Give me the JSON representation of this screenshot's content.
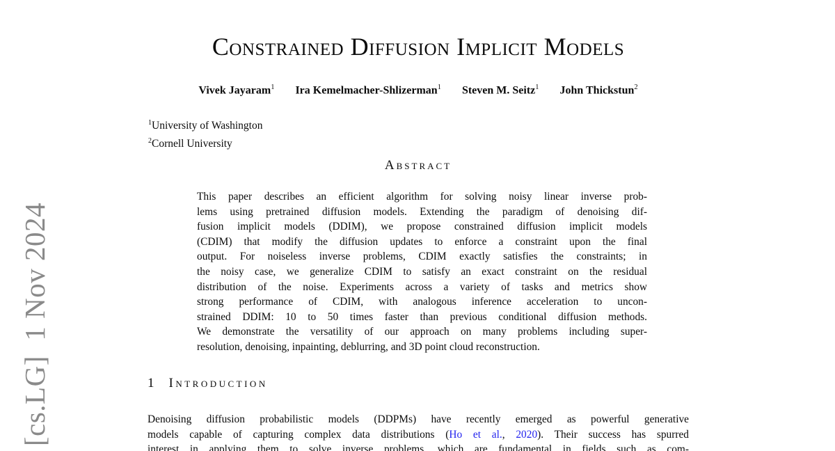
{
  "page": {
    "colors": {
      "background": "#ffffff",
      "text": "#0b0b0b",
      "link": "#2323ee",
      "watermark": "#8a8a8a"
    }
  },
  "watermark": {
    "text": "[cs.LG]  1 Nov 2024"
  },
  "title": "Constrained Diffusion Implicit Models",
  "authors": [
    {
      "name": "Vivek Jayaram",
      "sup": "1"
    },
    {
      "name": "Ira Kemelmacher-Shlizerman",
      "sup": "1"
    },
    {
      "name": "Steven M. Seitz",
      "sup": "1"
    },
    {
      "name": "John Thickstun",
      "sup": "2"
    }
  ],
  "affiliations": [
    {
      "sup": "1",
      "name": "University of Washington"
    },
    {
      "sup": "2",
      "name": "Cornell University"
    }
  ],
  "abstract": {
    "heading": "Abstract",
    "lines": [
      "This paper describes an efficient algorithm for solving noisy linear inverse prob-",
      "lems using pretrained diffusion models. Extending the paradigm of denoising dif-",
      "fusion implicit models (DDIM), we propose constrained diffusion implicit models",
      "(CDIM) that modify the diffusion updates to enforce a constraint upon the final",
      "output. For noiseless inverse problems, CDIM exactly satisfies the constraints; in",
      "the noisy case, we generalize CDIM to satisfy an exact constraint on the residual",
      "distribution of the noise. Experiments across a variety of tasks and metrics show",
      "strong performance of CDIM, with analogous inference acceleration to uncon-",
      "strained DDIM: 10 to 50 times faster than previous conditional diffusion methods.",
      "We demonstrate the versatility of our approach on many problems including super-",
      "resolution, denoising, inpainting, deblurring, and 3D point cloud reconstruction."
    ]
  },
  "section": {
    "number": "1",
    "heading": "Introduction"
  },
  "intro": {
    "line1": "Denoising diffusion probabilistic models (DDPMs) have recently emerged as powerful generative",
    "line2": {
      "pre": "models capable of capturing complex data distributions (",
      "cite_authors": "Ho et al.",
      "sep": ", ",
      "cite_year": "2020",
      "post": "). Their success has spurred"
    },
    "line3": "interest in applying them to solve inverse problems, which are fundamental in fields such as com-"
  }
}
